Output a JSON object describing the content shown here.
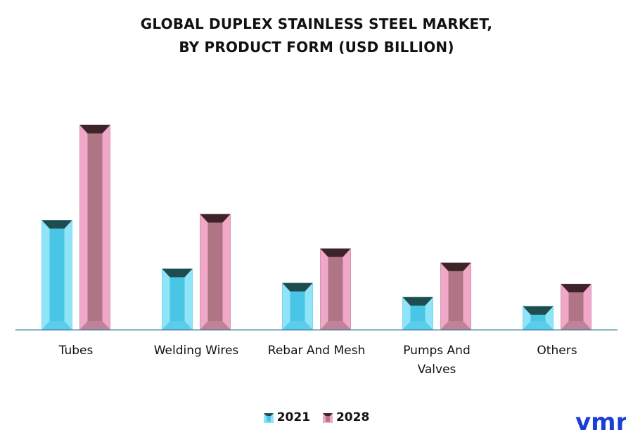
{
  "title": {
    "line1": "GLOBAL DUPLEX STAINLESS STEEL MARKET,",
    "line2": "BY PRODUCT FORM (USD BILLION)"
  },
  "legend": {
    "items": [
      {
        "label": "2021",
        "color": "#49c6e5"
      },
      {
        "label": "2028",
        "color": "#b07585"
      }
    ]
  },
  "logo": {
    "text": "vmr"
  },
  "colors": {
    "s2021_front": "#49c6e5",
    "s2021_side": "#8fe4f7",
    "s2021_top": "#1f4d4f",
    "s2028_front": "#b07585",
    "s2028_side": "#f0a7c8",
    "s2028_top": "#3c2428",
    "axis": "#3b7f9c"
  },
  "chart_data": {
    "type": "bar",
    "categories": [
      "Tubes",
      "Welding Wires",
      "Rebar And Mesh",
      "Pumps And Valves",
      "Others"
    ],
    "category_lines": [
      [
        "Tubes"
      ],
      [
        "Welding Wires"
      ],
      [
        "Rebar And Mesh"
      ],
      [
        "Pumps And",
        "Valves"
      ],
      [
        "Others"
      ]
    ],
    "series": [
      {
        "name": "2021",
        "values": [
          5.4,
          3.0,
          2.3,
          1.6,
          1.15
        ]
      },
      {
        "name": "2028",
        "values": [
          10.1,
          5.7,
          4.0,
          3.3,
          2.25
        ]
      }
    ],
    "ylim": [
      0,
      11
    ],
    "grid": false,
    "legend_position": "bottom"
  }
}
